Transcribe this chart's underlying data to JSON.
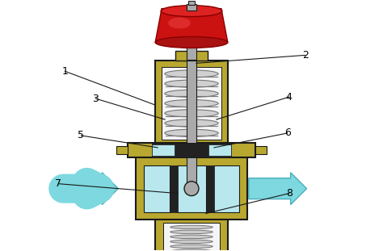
{
  "bg_color": "#ffffff",
  "olive": "#b8a830",
  "olive_dark": "#8a7a20",
  "dark": "#1a1a1a",
  "gray": "#aaaaaa",
  "gray_dark": "#777777",
  "red": "#cc1111",
  "red_dark": "#880000",
  "light_blue": "#b8e8ee",
  "spring_gray": "#999999",
  "arrow_color": "#7dd8e0",
  "arrow_edge": "#4ab0bc",
  "white_inner": "#f5f5f5",
  "black_sep": "#222222",
  "fig_w": 4.74,
  "fig_h": 3.11,
  "dpi": 100
}
